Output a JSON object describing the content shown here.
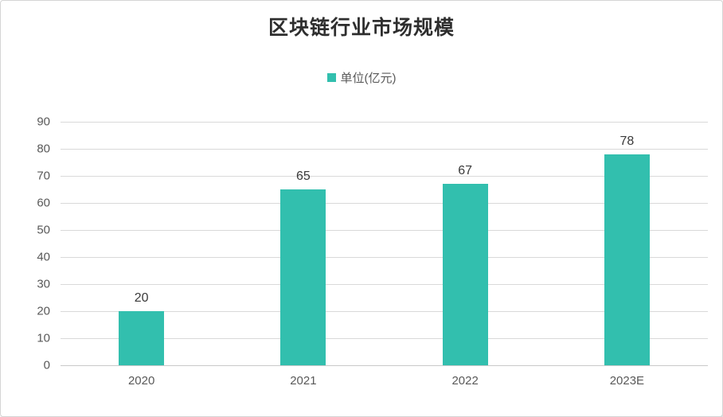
{
  "title": "区块链行业市场规模",
  "legend": {
    "label": "单位(亿元)",
    "swatch_color": "#32BFAE"
  },
  "colors": {
    "bar": "#32BFAE",
    "gridline": "#D9D9D9",
    "zero_line": "#C9C9C9",
    "axis_text": "#595959",
    "title_text": "#2E2E2E",
    "value_label_text": "#3A3A3A",
    "frame_border": "#D5D5D5",
    "background": "#FFFFFF"
  },
  "chart_data": {
    "type": "bar",
    "title": "区块链行业市场规模",
    "categories": [
      "2020",
      "2021",
      "2022",
      "2023E"
    ],
    "values": [
      20,
      65,
      67,
      78
    ],
    "series_name": "单位(亿元)",
    "xlabel": "",
    "ylabel": "",
    "ylim": [
      0,
      90
    ],
    "ytick_step": 10,
    "yticks": [
      0,
      10,
      20,
      30,
      40,
      50,
      60,
      70,
      80,
      90
    ],
    "grid": true,
    "legend_position": "top-center",
    "value_labels_shown": true
  }
}
